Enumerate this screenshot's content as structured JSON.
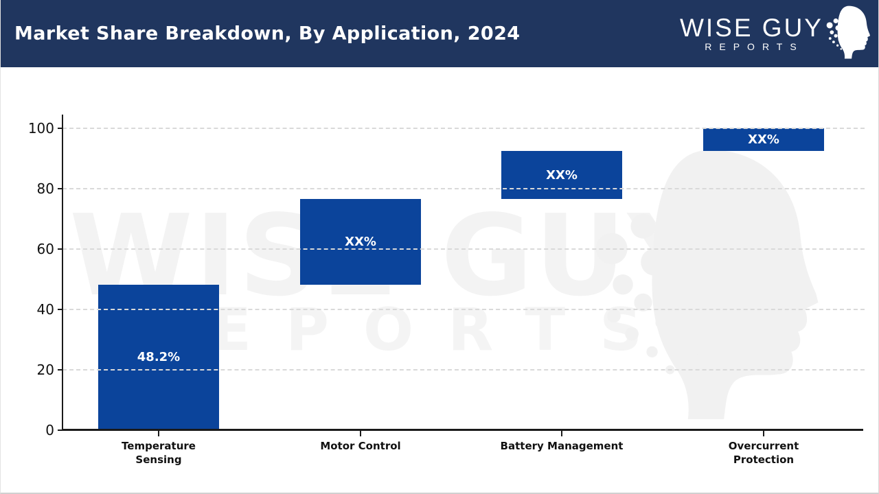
{
  "header": {
    "title": "Market Share Breakdown, By Application, 2024",
    "logo": {
      "line1": "WISE GUY",
      "line2": "REPORTS"
    }
  },
  "watermark": {
    "line1": "WISE GUY",
    "line2": "REPORTS"
  },
  "colors": {
    "header_bg": "#20365f",
    "bar_fill": "#0b449b",
    "gridline": "#d9d9d9",
    "axis": "#1a1a1a",
    "bar_label_text": "#ffffff",
    "watermark": "#f2f2f2"
  },
  "icons": {
    "brand_head": "dotted-profile-head",
    "watermark_head": "dotted-profile-head"
  },
  "chart_data": {
    "type": "bar",
    "variant": "waterfall",
    "title": "Market Share Breakdown, By Application, 2024",
    "categories": [
      "Temperature Sensing",
      "Motor Control",
      "Battery Management",
      "Overcurrent Protection"
    ],
    "categories_display": [
      "Temperature\nSensing",
      "Motor Control",
      "Battery Management",
      "Overcurrent\nProtection"
    ],
    "segments": [
      {
        "category": "Temperature Sensing",
        "start": 0,
        "end": 48.2,
        "label": "48.2%"
      },
      {
        "category": "Motor Control",
        "start": 48.2,
        "end": 76.5,
        "label": "XX%"
      },
      {
        "category": "Battery Management",
        "start": 76.5,
        "end": 92.5,
        "label": "XX%"
      },
      {
        "category": "Overcurrent Protection",
        "start": 92.5,
        "end": 100,
        "label": "XX%"
      }
    ],
    "xlabel": "",
    "ylabel": "",
    "ylim": [
      0,
      100
    ],
    "yticks": [
      0,
      20,
      40,
      60,
      80,
      100
    ],
    "grid": "horizontal-dashed",
    "legend": "none"
  }
}
